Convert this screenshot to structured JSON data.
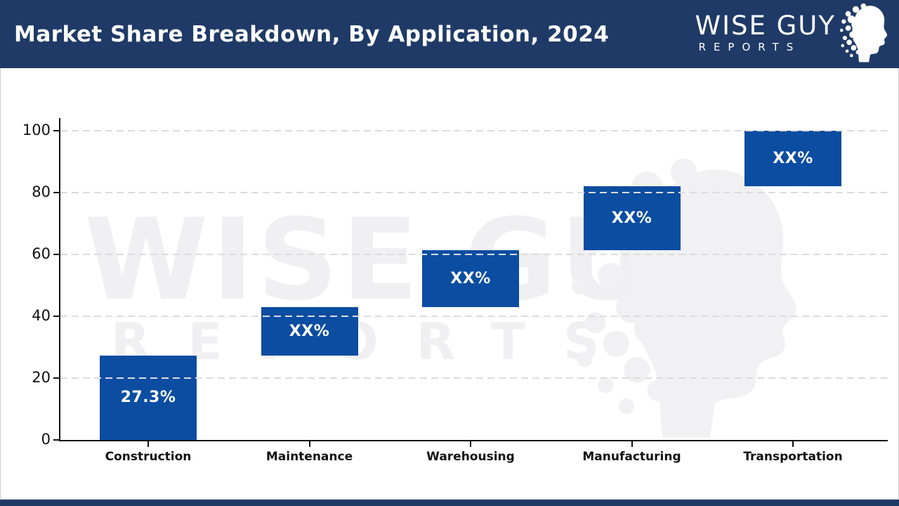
{
  "header": {
    "title": "Market Share Breakdown, By Application, 2024",
    "logo": {
      "line1": "WISE GUY",
      "line2": "REPORTS"
    }
  },
  "watermark": {
    "line1": "WISE GUY",
    "line2": "REPORTS"
  },
  "chart_data": {
    "type": "bar",
    "subtype": "waterfall",
    "title": "Market Share Breakdown, By Application, 2024",
    "categories": [
      "Construction",
      "Maintenance",
      "Warehousing",
      "Manufacturing",
      "Transportation"
    ],
    "segments": [
      {
        "category": "Construction",
        "start": 0,
        "end": 27.3,
        "label": "27.3%"
      },
      {
        "category": "Maintenance",
        "start": 27.3,
        "end": 43,
        "label": "XX%"
      },
      {
        "category": "Warehousing",
        "start": 43,
        "end": 61.3,
        "label": "XX%"
      },
      {
        "category": "Manufacturing",
        "start": 61.3,
        "end": 82,
        "label": "XX%"
      },
      {
        "category": "Transportation",
        "start": 82,
        "end": 100,
        "label": "XX%"
      }
    ],
    "ylim": [
      0,
      100
    ],
    "yticks": [
      0,
      20,
      40,
      60,
      80,
      100
    ],
    "grid": "horizontal-dashed",
    "legend": "none",
    "bar_color": "#0b4da1",
    "bar_label_color": "#ffffff"
  },
  "colors": {
    "header_bg": "#1f3a66",
    "footer_bg": "#1f3a66",
    "bar": "#0b4da1",
    "watermark": "#f0f0f2",
    "grid": "#dcdcdc",
    "axis": "#111111"
  }
}
